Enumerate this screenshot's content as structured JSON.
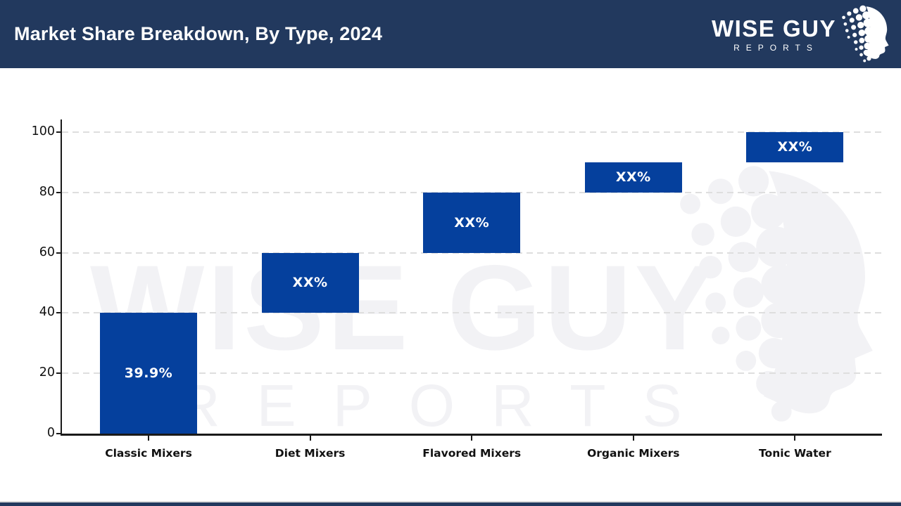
{
  "header": {
    "title": "Market Share Breakdown, By Type, 2024"
  },
  "brand": {
    "name": "WISE GUY",
    "sub": "REPORTS"
  },
  "watermark": {
    "line1": "WISE GUY",
    "line2": "REPORTS"
  },
  "colors": {
    "header_bg": "#22395e",
    "bar_blue": "#05409d",
    "grid_gray": "#dedede",
    "watermark_gray": "#f2f2f5",
    "axis_black": "#1a1a1a",
    "bar_label_white": "#ffffff"
  },
  "chart_data": {
    "type": "bar",
    "subtype": "waterfall",
    "title": "Market Share Breakdown, By Type, 2024",
    "categories": [
      "Classic Mixers",
      "Diet Mixers",
      "Flavored Mixers",
      "Organic Mixers",
      "Tonic Water"
    ],
    "segments": [
      {
        "category": "Classic Mixers",
        "start": 0,
        "end": 40,
        "label": "39.9%"
      },
      {
        "category": "Diet Mixers",
        "start": 40,
        "end": 60,
        "label": "XX%"
      },
      {
        "category": "Flavored Mixers",
        "start": 60,
        "end": 80,
        "label": "XX%"
      },
      {
        "category": "Organic Mixers",
        "start": 80,
        "end": 90,
        "label": "XX%"
      },
      {
        "category": "Tonic Water",
        "start": 90,
        "end": 100,
        "label": "XX%"
      }
    ],
    "yticks": [
      0,
      20,
      40,
      60,
      80,
      100
    ],
    "ylim": [
      0,
      106
    ],
    "xlabel": "",
    "ylabel": "",
    "grid": "horizontal-dashed",
    "legend": "none",
    "bar_color": "#05409d",
    "bar_label_color": "#ffffff",
    "note": "Only first segment shows numeric value; others display XX% placeholders"
  }
}
